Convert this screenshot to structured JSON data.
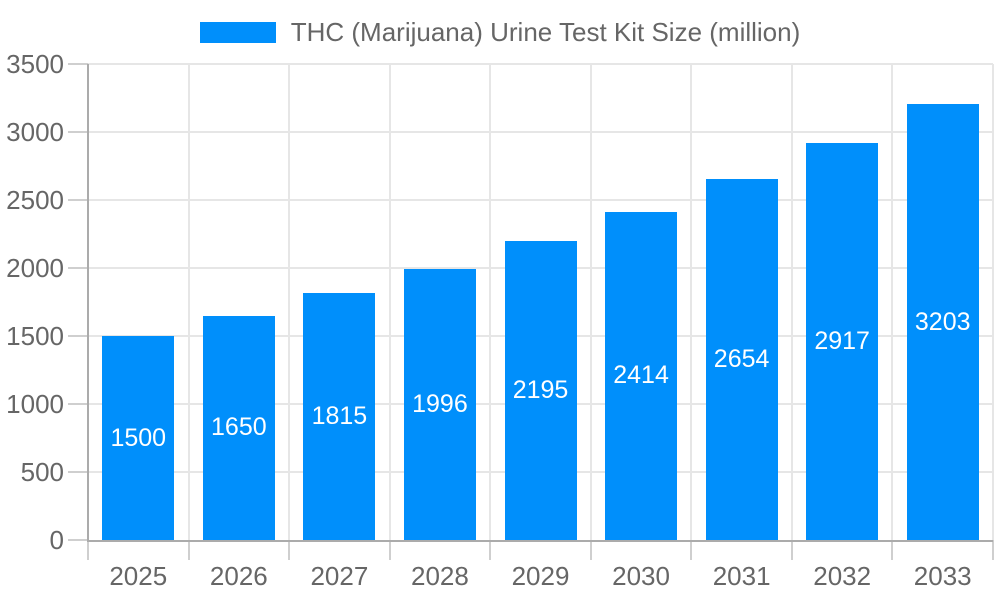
{
  "legend": {
    "label": "THC (Marijuana) Urine Test Kit Size (million)"
  },
  "chart_data": {
    "type": "bar",
    "title": "THC (Marijuana) Urine Test Kit Size (million)",
    "categories": [
      "2025",
      "2026",
      "2027",
      "2028",
      "2029",
      "2030",
      "2031",
      "2032",
      "2033"
    ],
    "values": [
      1500,
      1650,
      1815,
      1996,
      2195,
      2414,
      2654,
      2917,
      3203
    ],
    "series": [
      {
        "name": "THC (Marijuana) Urine Test Kit Size (million)",
        "values": [
          1500,
          1650,
          1815,
          1996,
          2195,
          2414,
          2654,
          2917,
          3203
        ]
      }
    ],
    "xlabel": "",
    "ylabel": "",
    "ylim": [
      0,
      3500
    ],
    "y_ticks": [
      0,
      500,
      1000,
      1500,
      2000,
      2500,
      3000,
      3500
    ],
    "grid": true,
    "legend_position": "top",
    "bar_color": "#008FFB",
    "data_labels": {
      "position": "center",
      "color": "#FFFFFF"
    }
  },
  "colors": {
    "bar": "#008FFB",
    "grid": "#E6E6E6",
    "axis_line": "#ABABAB",
    "tick": "#CFCFCF",
    "text": "#666666",
    "bar_label": "#FFFFFF",
    "background": "#FFFFFF"
  }
}
